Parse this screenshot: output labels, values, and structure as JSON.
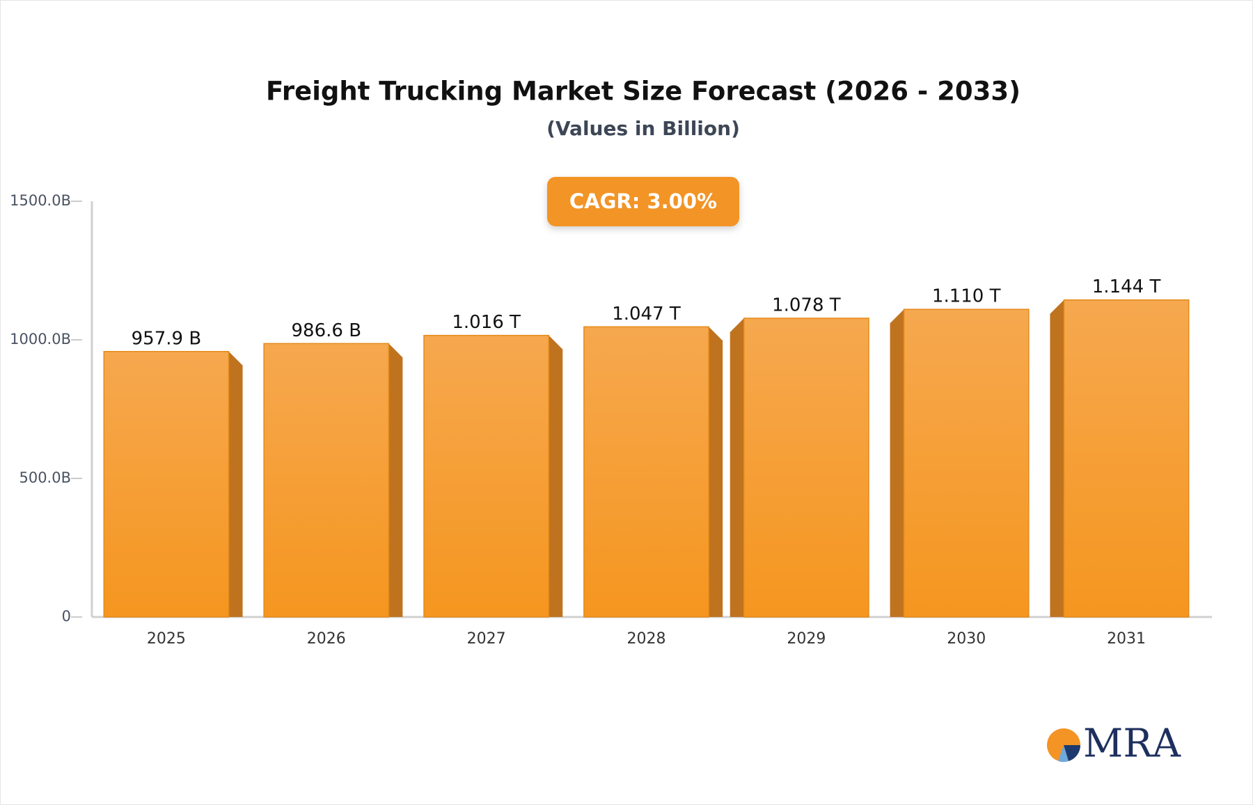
{
  "chart_data": {
    "type": "bar3d",
    "title": "Freight Trucking Market Size Forecast (2026 - 2033)",
    "subtitle": "(Values in Billion)",
    "annotation": "CAGR: 3.00%",
    "categories": [
      "2025",
      "2026",
      "2027",
      "2028",
      "2029",
      "2030",
      "2031"
    ],
    "values": [
      957.9,
      986.6,
      1016,
      1047,
      1078,
      1110,
      1144
    ],
    "value_labels": [
      "957.9 B",
      "986.6 B",
      "1.016 T",
      "1.047 T",
      "1.078 T",
      "1.110 T",
      "1.144 T"
    ],
    "color": "#f59d30",
    "ylim": [
      0,
      1500
    ],
    "yticks": [
      0,
      {
        "value": 500,
        "label": "500.0B"
      },
      {
        "value": 1000,
        "label": "1000.0B"
      },
      {
        "value": 1500,
        "label": "1500.0B"
      }
    ],
    "grid": false
  },
  "logo": "MRA"
}
